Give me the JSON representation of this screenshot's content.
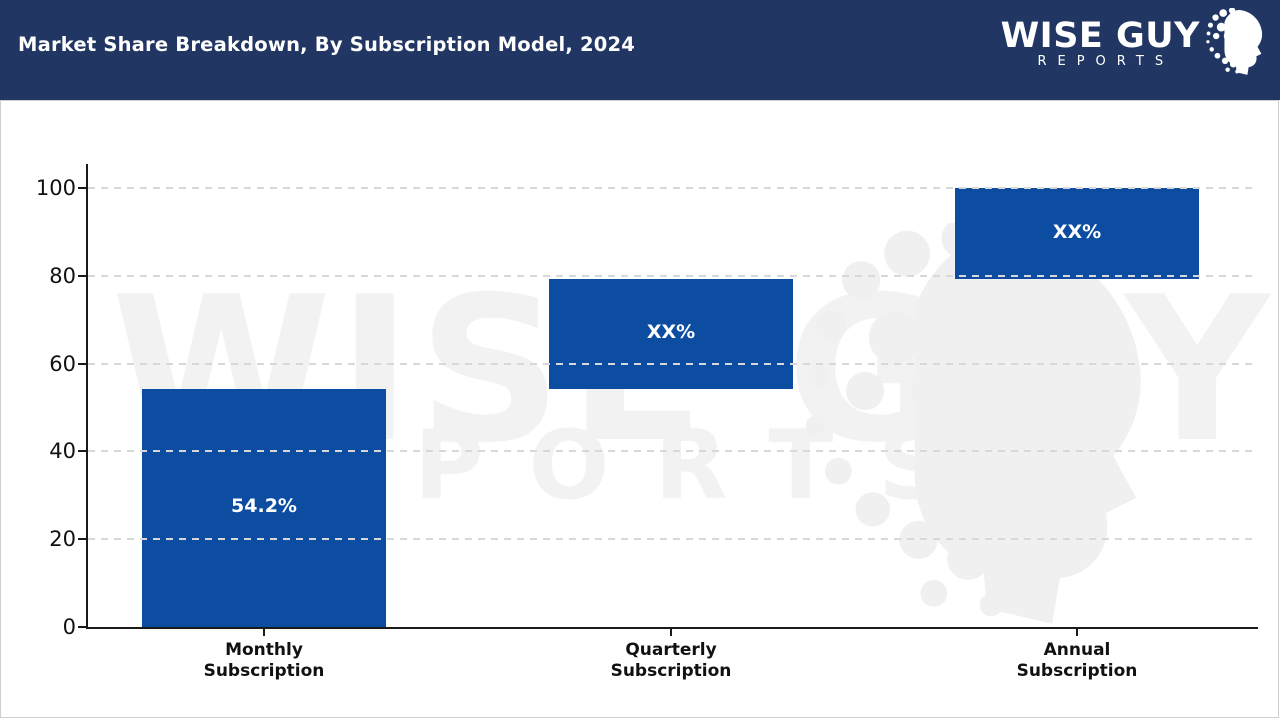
{
  "header": {
    "title": "Market Share Breakdown, By Subscription Model, 2024",
    "logo": {
      "name": "WISE GUY",
      "sub": "REPORTS"
    }
  },
  "watermark": {
    "line1": "WISE GUY",
    "line2": "REPORTS"
  },
  "chart_data": {
    "type": "bar",
    "subtype": "waterfall-stacked",
    "title": "Market Share Breakdown, By Subscription Model, 2024",
    "categories": [
      "Monthly Subscription",
      "Quarterly Subscription",
      "Annual Subscription"
    ],
    "bars": [
      {
        "category": "Monthly Subscription",
        "label": "54.2%",
        "start": 0,
        "end": 54.2
      },
      {
        "category": "Quarterly Subscription",
        "label": "XX%",
        "start": 54.2,
        "end": 79.2
      },
      {
        "category": "Annual Subscription",
        "label": "XX%",
        "start": 79.2,
        "end": 100
      }
    ],
    "yticks": [
      0,
      20,
      40,
      60,
      80,
      100
    ],
    "ylim": [
      0,
      105.5
    ],
    "xlabel": "",
    "ylabel": "",
    "legend": "none",
    "grid": "horizontal dashed, drawn over bars"
  },
  "colors": {
    "header_bg": "#213663",
    "bar": "#0c4da2",
    "grid": "#d8d8d8",
    "axis": "#1a1a1a",
    "page_bg": "#ffffff",
    "border": "#cfcfcf",
    "watermark": "#f2f2f2"
  }
}
